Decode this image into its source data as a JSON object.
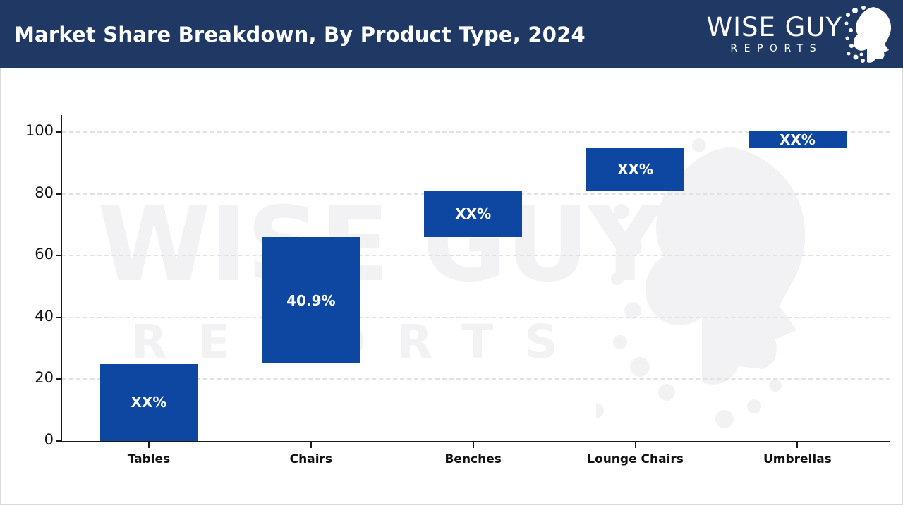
{
  "header": {
    "title": "Market Share Breakdown, By Product Type, 2024",
    "bg_color": "#1F3864",
    "logo": {
      "line1": "WISE GUY",
      "line2": "REPORTS"
    }
  },
  "watermark": {
    "line1": "WISE GUY",
    "line2": "REPORTS"
  },
  "chart_data": {
    "type": "bar",
    "variant": "floating-waterfall-columns",
    "title": "Market Share Breakdown, By Product Type, 2024",
    "categories": [
      "Tables",
      "Chairs",
      "Benches",
      "Lounge Chairs",
      "Umbrellas"
    ],
    "series": [
      {
        "name": "Market share segment",
        "bars": [
          {
            "category": "Tables",
            "start": 0,
            "end": 25,
            "label": "XX%"
          },
          {
            "category": "Chairs",
            "start": 25,
            "end": 65.9,
            "label": "40.9%"
          },
          {
            "category": "Benches",
            "start": 65.9,
            "end": 81,
            "label": "XX%"
          },
          {
            "category": "Lounge Chairs",
            "start": 81,
            "end": 94.7,
            "label": "XX%"
          },
          {
            "category": "Umbrellas",
            "start": 94.7,
            "end": 100.4,
            "label": "XX%"
          }
        ]
      }
    ],
    "yticks": [
      0,
      20,
      40,
      60,
      80,
      100
    ],
    "ylim": [
      0,
      105
    ],
    "xlabel": "",
    "ylabel": "",
    "grid": "dashed-horizontal",
    "legend": "none",
    "bar_color": "#0D47A1",
    "grid_color": "#e2e2e2",
    "axis_color": "#1a1a1a"
  }
}
